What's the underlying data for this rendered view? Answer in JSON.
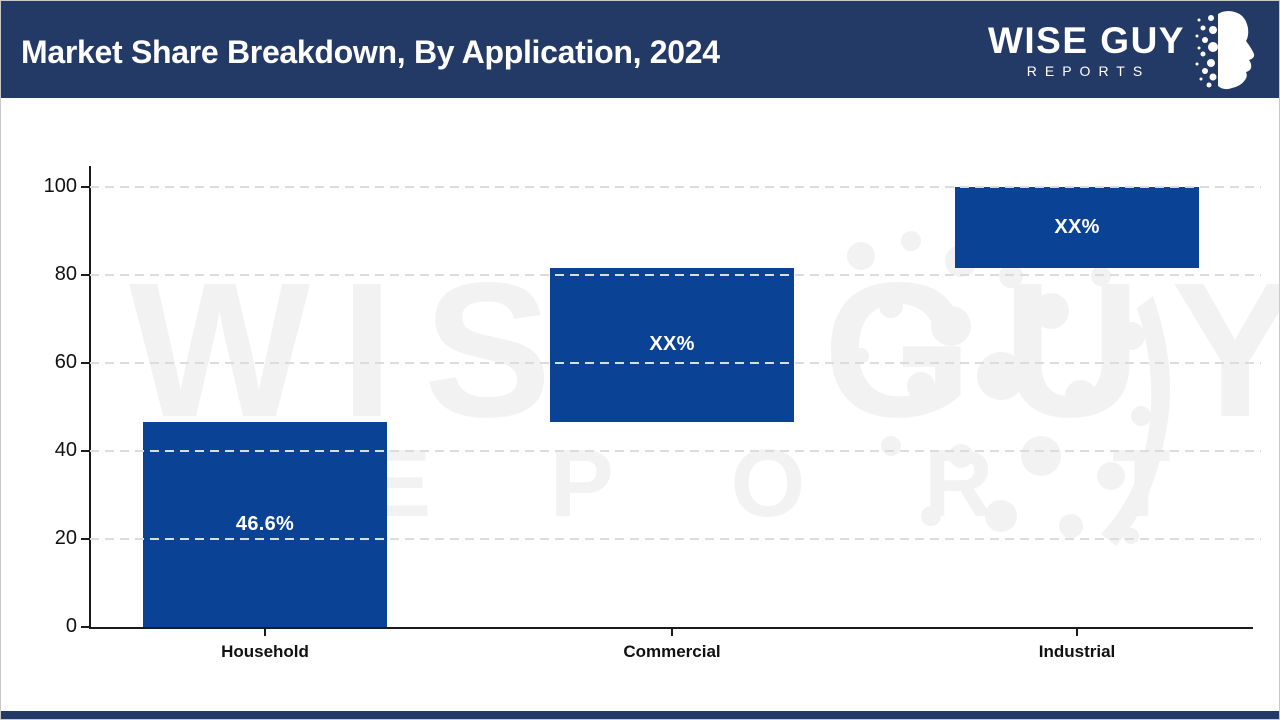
{
  "header": {
    "title": "Market Share Breakdown, By Application, 2024",
    "logo": {
      "line1": "WISE GUY",
      "line2": "REPORTS"
    }
  },
  "watermark": {
    "line1": "WISE GUY",
    "line2": "R E P O R T S"
  },
  "chart_data": {
    "type": "bar",
    "variant": "waterfall",
    "title": "Market Share Breakdown, By Application, 2024",
    "categories": [
      "Household",
      "Commercial",
      "Industrial"
    ],
    "segments": [
      {
        "category": "Household",
        "start": 0,
        "end": 46.6,
        "label": "46.6%"
      },
      {
        "category": "Commercial",
        "start": 46.6,
        "end": 81.6,
        "label": "XX%"
      },
      {
        "category": "Industrial",
        "start": 81.6,
        "end": 100,
        "label": "XX%"
      }
    ],
    "ylim": [
      0,
      100
    ],
    "yticks": [
      0,
      20,
      40,
      60,
      80,
      100
    ],
    "xlabel": "",
    "ylabel": "",
    "legend": "none",
    "grid": "dashed-horizontal",
    "bar_color": "#0a4296",
    "colors": {
      "header_bg": "#243a66",
      "bar": "#0a4296",
      "gridline": "#dcdcdc",
      "axis": "#1a1a1a",
      "bar_label_text": "#ffffff",
      "watermark": "#f2f2f2"
    }
  }
}
